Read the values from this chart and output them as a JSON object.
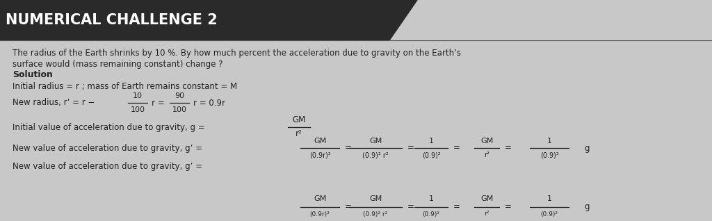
{
  "title": "NUMERICAL CHALLENGE 2",
  "title_bg_color": "#2a2a2a",
  "title_text_color": "#ffffff",
  "bg_color": "#c8c8c8",
  "line1": "The radius of the Earth shrinks by 10 %. By how much percent the acceleration due to gravity on the Earth’s",
  "line2": "surface would (mass remaining constant) change ?",
  "solution_label": "Solution",
  "line3": "Initial radius = r ; mass of Earth remains constant = M",
  "new_radius_prefix": "New radius, r’ = r −",
  "frac1_num": "10",
  "frac1_den": "100",
  "frac_mid": "r =",
  "frac2_num": "90",
  "frac2_den": "100",
  "new_radius_suffix": "r = 0.9r",
  "initial_g_prefix": "Initial value of acceleration due to gravity, g =",
  "initial_g_num": "GM",
  "initial_g_den": "r²",
  "new_g_prefix": "New value of acceleration due to gravity, g’ =",
  "new_g_nums": [
    "GM",
    "GM",
    "1",
    "GM",
    "1"
  ],
  "new_g_dens": [
    "(0.9r)²",
    "(0.9)² r²",
    "(0.9)²",
    "r²",
    "(0.9)²"
  ],
  "new_g_suffix": "g",
  "text_color": "#222222"
}
